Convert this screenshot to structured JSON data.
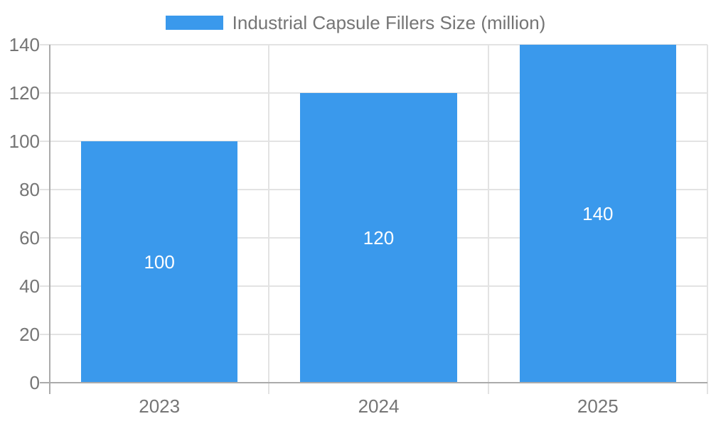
{
  "legend": {
    "label": "Industrial Capsule Fillers Size (million)"
  },
  "chart_data": {
    "type": "bar",
    "title": "Industrial Capsule Fillers Size (million)",
    "series_name": "Industrial Capsule Fillers Size (million)",
    "categories": [
      "2023",
      "2024",
      "2025"
    ],
    "values": [
      100,
      120,
      140
    ],
    "value_labels": [
      "100",
      "120",
      "140"
    ],
    "xlabel": "",
    "ylabel": "",
    "ylim": [
      0,
      140
    ],
    "yticks": [
      0,
      20,
      40,
      60,
      80,
      100,
      120,
      140
    ],
    "grid": true,
    "legend_position": "top-center"
  },
  "colors": {
    "bar": "#3a99ec",
    "bar_value_label": "#ffffff",
    "axis_line": "#ababab",
    "gridline": "#e3e3e3",
    "tick_text": "#757575",
    "legend_text": "#757575",
    "background": "#ffffff"
  }
}
